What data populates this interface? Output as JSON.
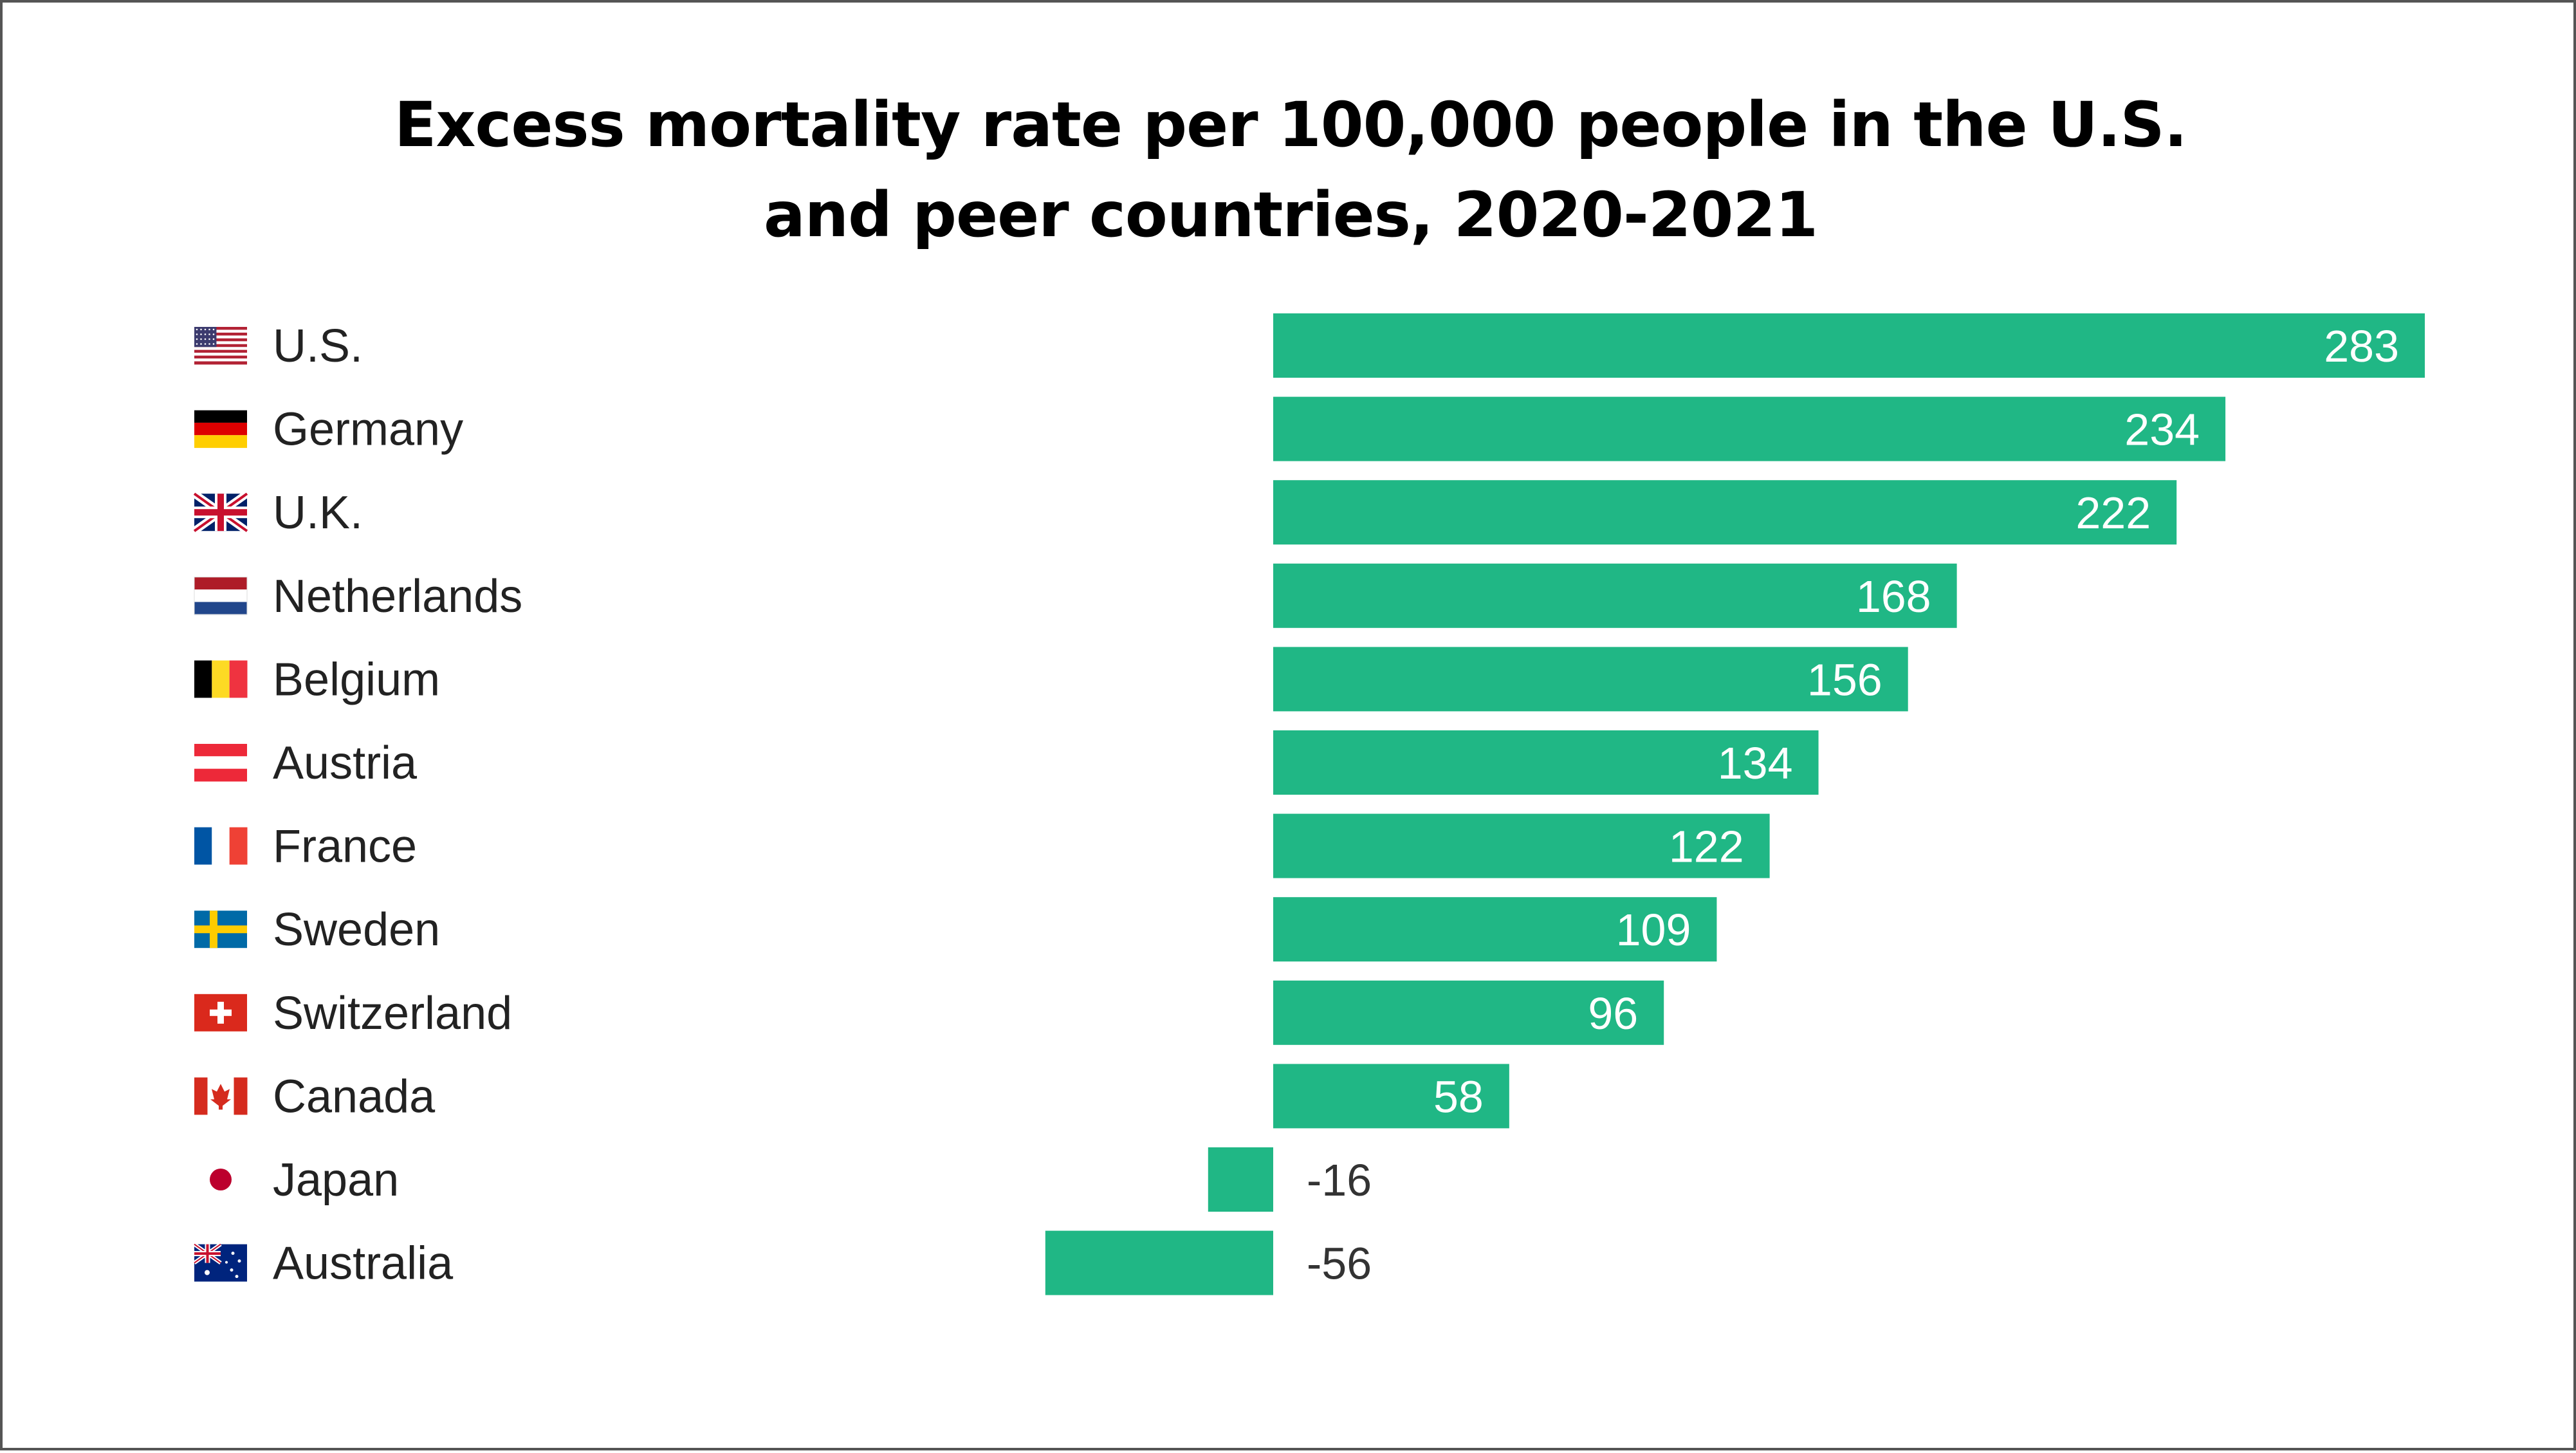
{
  "chart_data": {
    "type": "bar",
    "orientation": "horizontal",
    "title": [
      "Excess mortality rate per 100,000 people in the U.S.",
      "and peer countries, 2020-2021"
    ],
    "categories": [
      "U.S.",
      "Germany",
      "U.K.",
      "Netherlands",
      "Belgium",
      "Austria",
      "France",
      "Sweden",
      "Switzerland",
      "Canada",
      "Japan",
      "Australia"
    ],
    "values": [
      283,
      234,
      222,
      168,
      156,
      134,
      122,
      109,
      96,
      58,
      -16,
      -56
    ],
    "value_labels": [
      "283",
      "234",
      "222",
      "168",
      "156",
      "134",
      "122",
      "109",
      "96",
      "58",
      "-16",
      "-56"
    ],
    "flag_icons": [
      "flag-us-icon",
      "flag-germany-icon",
      "flag-uk-icon",
      "flag-netherlands-icon",
      "flag-belgium-icon",
      "flag-austria-icon",
      "flag-france-icon",
      "flag-sweden-icon",
      "flag-switzerland-icon",
      "flag-canada-icon",
      "flag-japan-icon",
      "flag-australia-icon"
    ],
    "xlim": [
      -56,
      283
    ],
    "grid": false,
    "legend": "none",
    "bar_color": "#20b785"
  }
}
